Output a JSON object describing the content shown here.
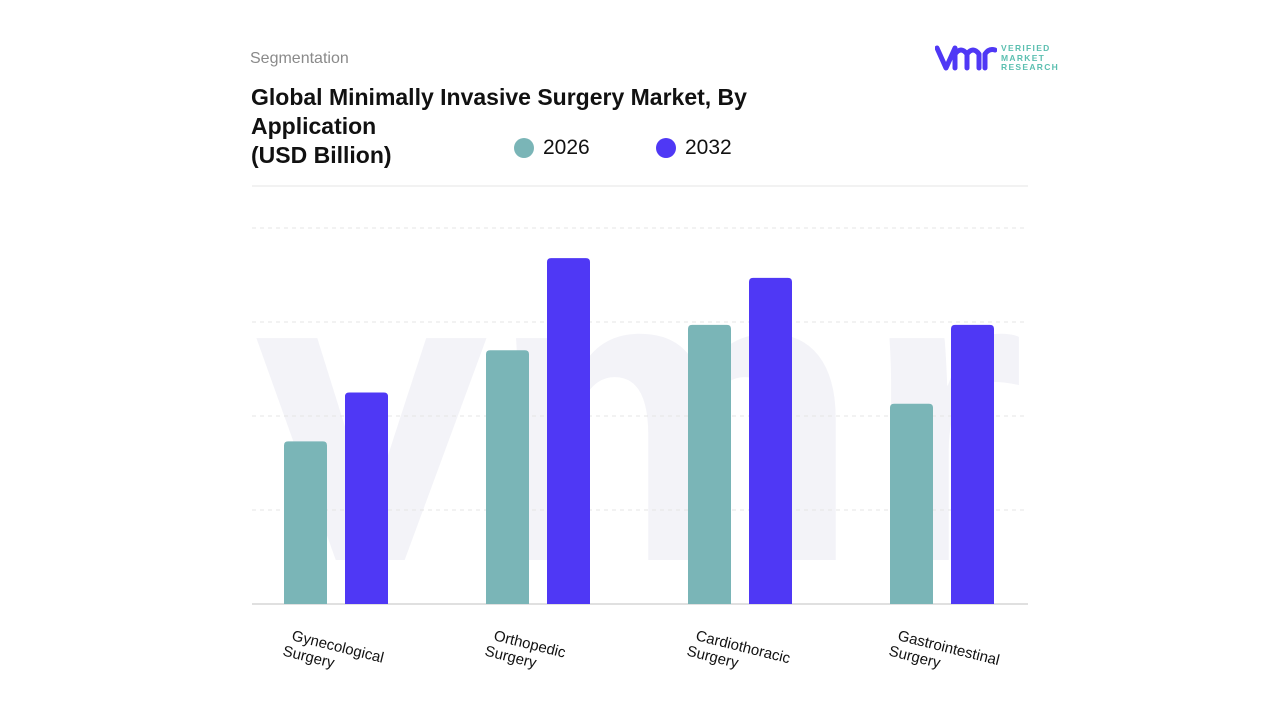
{
  "header": {
    "section": "Segmentation",
    "title": "Global Minimally Invasive Surgery Market, By Application",
    "subtitle": "(USD Billion)"
  },
  "logo": {
    "line1": "VERIFIED",
    "line2": "MARKET",
    "line3": "RESEARCH",
    "mark": "vmr"
  },
  "chart_data": {
    "type": "bar",
    "title": "Global Minimally Invasive Surgery Market, By Application (USD Billion)",
    "categories": [
      "Gynecological Surgery",
      "Orthopedic Surgery",
      "Cardiothoracic Surgery",
      "Gastrointestinal Surgery"
    ],
    "category_lines": [
      [
        "Gynecological",
        "Surgery"
      ],
      [
        "Orthopedic",
        "Surgery"
      ],
      [
        "Cardiothoracic",
        "Surgery"
      ],
      [
        "Gastrointestinal",
        "Surgery"
      ]
    ],
    "series": [
      {
        "name": "2026",
        "color": "#7ab5b7",
        "values": [
          1.73,
          2.7,
          2.97,
          2.13
        ]
      },
      {
        "name": "2032",
        "color": "#4f38f5",
        "values": [
          2.25,
          3.68,
          3.47,
          2.97
        ]
      }
    ],
    "ylim": [
      0,
      4
    ],
    "grid": true,
    "legend": "top",
    "xlabel": "",
    "ylabel": ""
  }
}
